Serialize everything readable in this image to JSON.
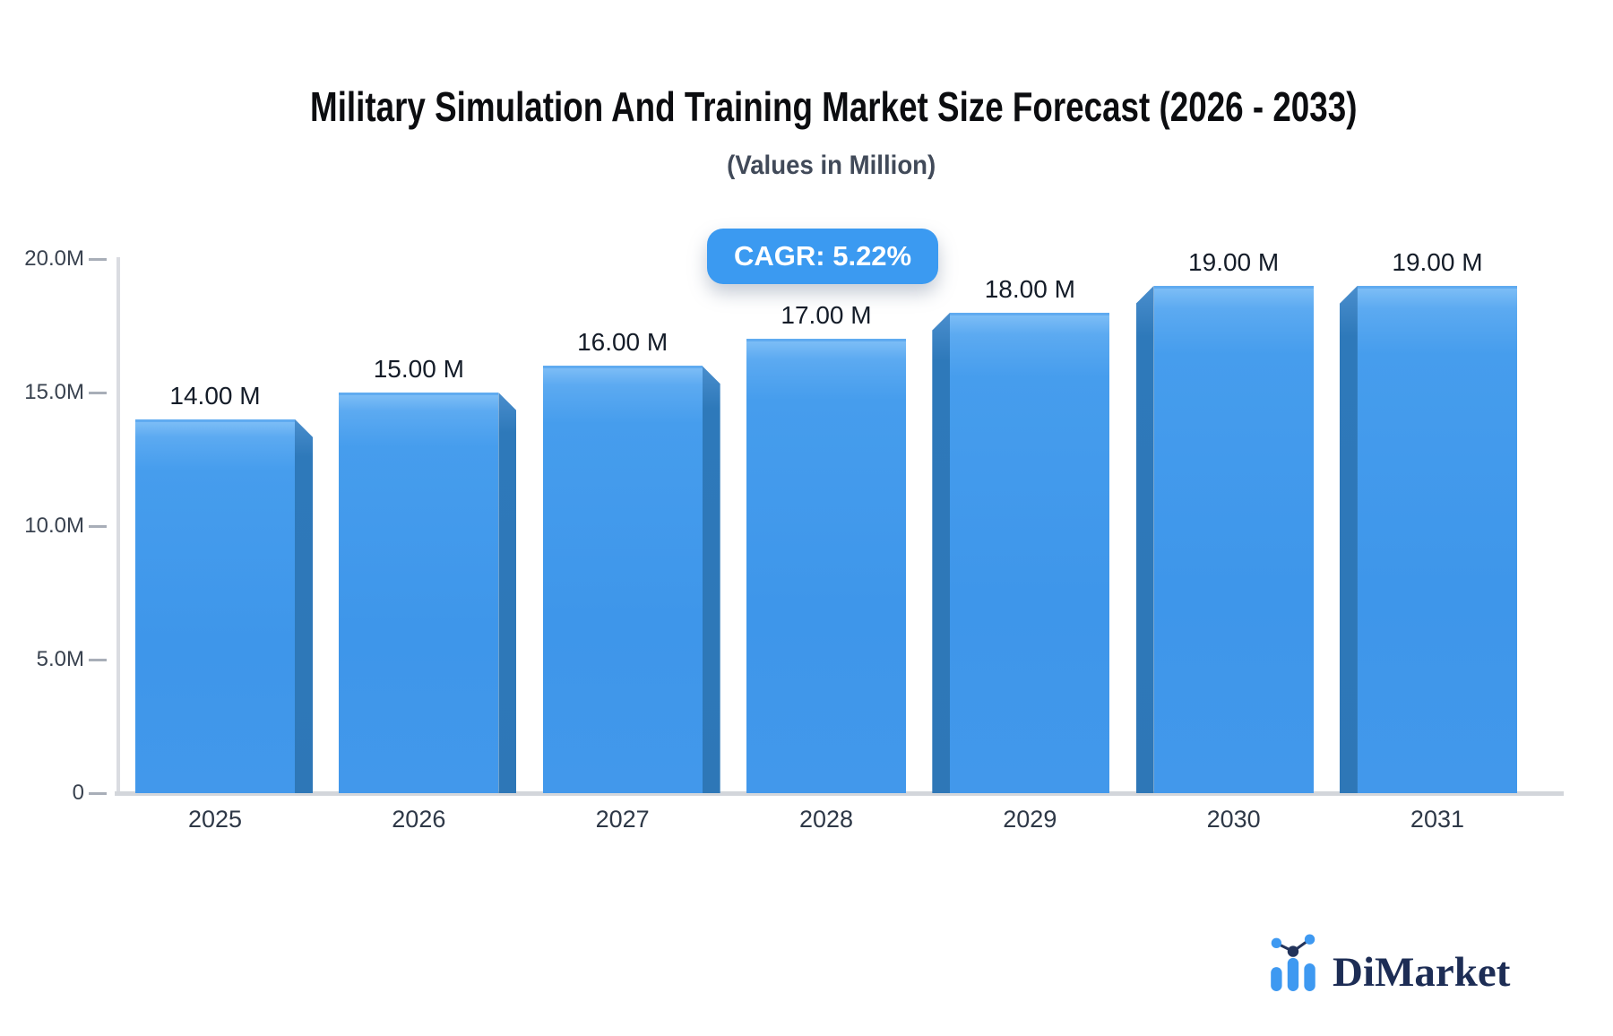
{
  "title": "Military Simulation And Training Market Size Forecast (2026 - 2033)",
  "subtitle": "(Values in Million)",
  "badge": {
    "label": "CAGR: 5.22%",
    "bg_color": "#3b9af1",
    "text_color": "#ffffff"
  },
  "chart_data": {
    "type": "bar",
    "title": "Military Simulation And Training Market Size Forecast (2026 - 2033)",
    "subtitle": "(Values in Million)",
    "categories": [
      "2025",
      "2026",
      "2027",
      "2028",
      "2029",
      "2030",
      "2031"
    ],
    "values": [
      14,
      15,
      16,
      17,
      18,
      19,
      19
    ],
    "point_labels": [
      "14.00 M",
      "15.00 M",
      "16.00 M",
      "17.00 M",
      "18.00 M",
      "19.00 M",
      "19.00 M"
    ],
    "unit": "Million",
    "xlabel": "",
    "ylabel": "",
    "ylim": [
      0,
      20
    ],
    "yticks": [
      {
        "value": 0,
        "label": "0"
      },
      {
        "value": 5,
        "label": "5.0M"
      },
      {
        "value": 10,
        "label": "10.0M"
      },
      {
        "value": 15,
        "label": "15.0M"
      },
      {
        "value": 20,
        "label": "20.0M"
      }
    ],
    "grid": false,
    "legend": false,
    "annotations": [
      "CAGR: 5.22%"
    ],
    "bar_color": "#3f97eb",
    "bar_side_color": "#2e79ba",
    "style": "3d-extruded-bars, perspective toward center"
  },
  "logo": {
    "text": "DiMarket",
    "icon": "mini-bar-line-chart-icon",
    "navy": "#1d2d55",
    "blue": "#3e99f1"
  }
}
